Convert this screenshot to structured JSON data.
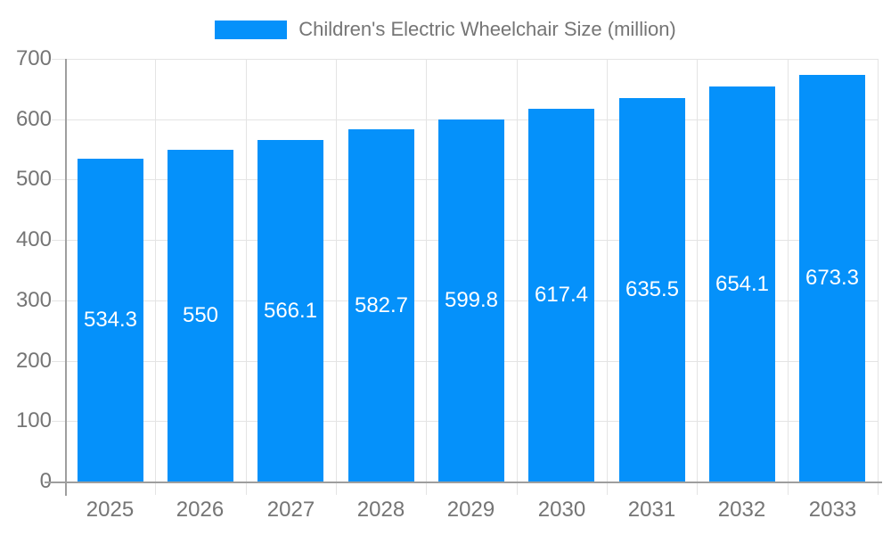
{
  "chart_data": {
    "type": "bar",
    "title": "Children's Electric Wheelchair Size (million)",
    "legend": {
      "label": "Children's Electric Wheelchair Size (million)",
      "position": "top-center"
    },
    "categories": [
      "2025",
      "2026",
      "2027",
      "2028",
      "2029",
      "2030",
      "2031",
      "2032",
      "2033"
    ],
    "values": [
      534.3,
      550,
      566.1,
      582.7,
      599.8,
      617.4,
      635.5,
      654.1,
      673.3
    ],
    "value_labels": [
      "534.3",
      "550",
      "566.1",
      "582.7",
      "599.8",
      "617.4",
      "635.5",
      "654.1",
      "673.3"
    ],
    "xlabel": "",
    "ylabel": "",
    "ylim": [
      0,
      700
    ],
    "ytick_labels": [
      "0",
      "100",
      "200",
      "300",
      "400",
      "500",
      "600",
      "700"
    ],
    "ytick_values": [
      0,
      100,
      200,
      300,
      400,
      500,
      600,
      700
    ],
    "grid": true,
    "colors": {
      "bar": "#0591fa",
      "grid": "#e4e4e4",
      "axis": "#9e9e9e",
      "tick_text": "#757575",
      "value_text": "#ffffff",
      "background": "#ffffff"
    }
  }
}
